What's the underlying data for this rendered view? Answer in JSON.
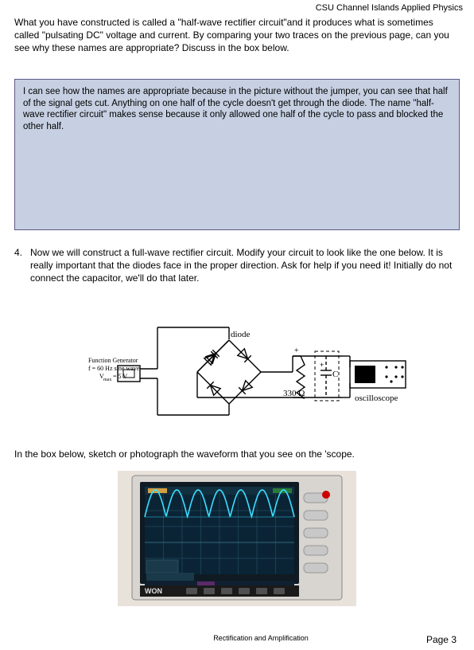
{
  "header": "CSU Channel Islands Applied Physics",
  "intro": "What you have constructed is called a \"half-wave rectifier circuit\"and it produces what is sometimes called \"pulsating DC\" voltage and current.  By comparing your two traces on the previous page, can you see why these names are appropriate?   Discuss in the box below.",
  "answer": "I can see how the names are appropriate because in the picture without the jumper, you can see that half of the signal gets cut. Anything on one half of the cycle doesn't get through the diode. The name \"half-wave rectifier circuit\" makes sense because it only allowed one half of the cycle to pass and blocked the other half.",
  "q4": {
    "number": "4.",
    "text": "Now we will construct a full-wave rectifier circuit. Modify your circuit to look like the one below.  It is really important that the diodes face in the proper direction.  Ask for help if you need it!  Initially do not connect the capacitor, we'll do that later."
  },
  "circuit": {
    "labels": {
      "fg_line1": "Function Generator",
      "fg_line2": "f = 60 Hz sine wave",
      "fg_line3": "V",
      "fg_line3b": " = 5 V",
      "fg_sub": "max",
      "diode": "diode",
      "resistor": "330 Ω",
      "cap": "C",
      "oscilloscope": "oscilloscope",
      "plus": "+"
    },
    "style": {
      "stroke": "#000000",
      "stroke_width": 1.4,
      "dash": "4 3",
      "bg": "#ffffff"
    }
  },
  "sketch_instruction": "In the box below, sketch or photograph the waveform that you see on the 'scope.",
  "scope": {
    "casing_color": "#d8d4d0",
    "screen_bg": "#0a2436",
    "trace_color": "#3adfff",
    "grid_color": "#2a5a6a",
    "label_bg": "#1a3a4a",
    "brand": "WON",
    "button_color": "#c8c8c8",
    "wave_cycles": 7,
    "wave_amp": 34,
    "wave_base": 58
  },
  "footer": {
    "center": "Rectification and Amplification",
    "right": "Page 3"
  }
}
